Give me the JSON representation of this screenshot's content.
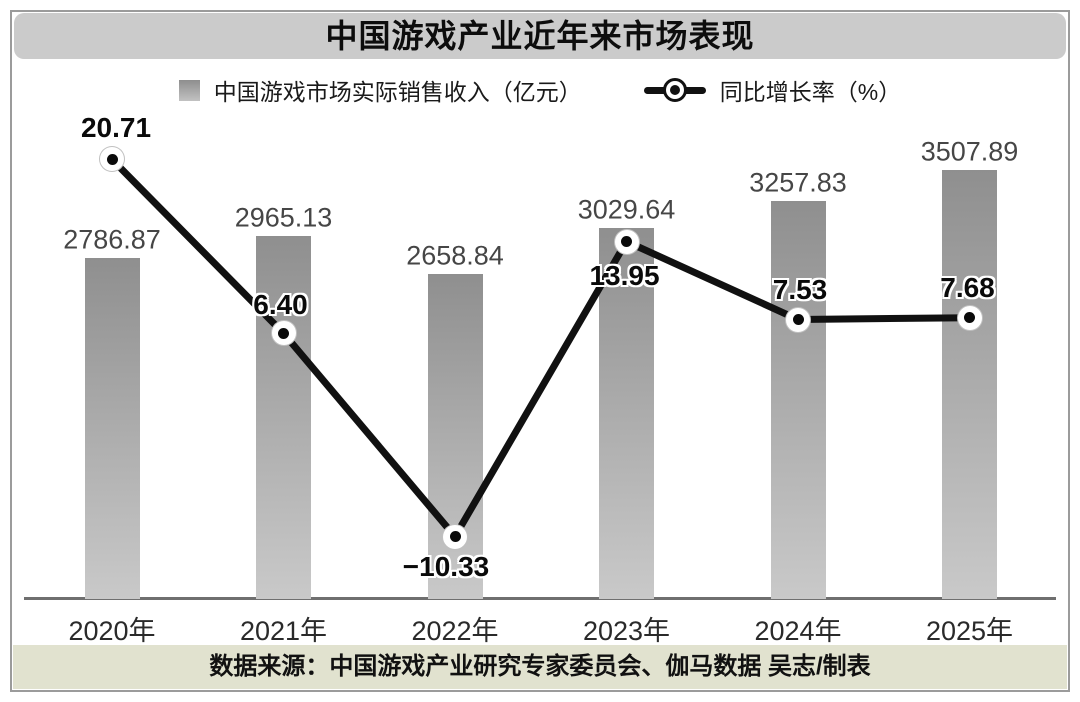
{
  "title": "中国游戏产业近年来市场表现",
  "legend": {
    "bar_series_label": "中国游戏市场实际销售收入（亿元）",
    "line_series_label": "同比增长率（%）"
  },
  "footer": {
    "source_text": "数据来源：中国游戏产业研究专家委员会、伽马数据 吴志/制表"
  },
  "colors": {
    "title_bar_bg": "#cbcbcb",
    "bar_gradient_top": "#8f8f8f",
    "bar_gradient_bottom": "#c9c9c9",
    "line_color": "#111111",
    "footer_bg": "#e1e2cf",
    "frame_border": "#9b9b9b",
    "bar_value_text": "#464646",
    "axis_line": "#6f6f6f"
  },
  "chart_data": {
    "type": "combo",
    "title": "中国游戏产业近年来市场表现",
    "categories": [
      "2020年",
      "2021年",
      "2022年",
      "2023年",
      "2024年",
      "2025年"
    ],
    "series": [
      {
        "name": "中国游戏市场实际销售收入（亿元）",
        "type": "bar",
        "unit": "亿元",
        "values": [
          2786.87,
          2965.13,
          2658.84,
          3029.64,
          3257.83,
          3507.89
        ],
        "labels": [
          "2786.87",
          "2965.13",
          "2658.84",
          "3029.64",
          "3257.83",
          "3507.89"
        ]
      },
      {
        "name": "同比增长率（%）",
        "type": "line",
        "unit": "%",
        "values": [
          20.71,
          6.4,
          -10.33,
          13.95,
          7.53,
          7.68
        ],
        "labels": [
          "20.71",
          "6.40",
          "−10.33",
          "13.95",
          "7.53",
          "7.68"
        ]
      }
    ],
    "xlabel": "",
    "ylabel": "",
    "bar_axis_range": [
      0,
      3507.89
    ],
    "grid": false,
    "legend_position": "top",
    "source": "数据来源：中国游戏产业研究专家委员会、伽马数据 吴志/制表"
  }
}
